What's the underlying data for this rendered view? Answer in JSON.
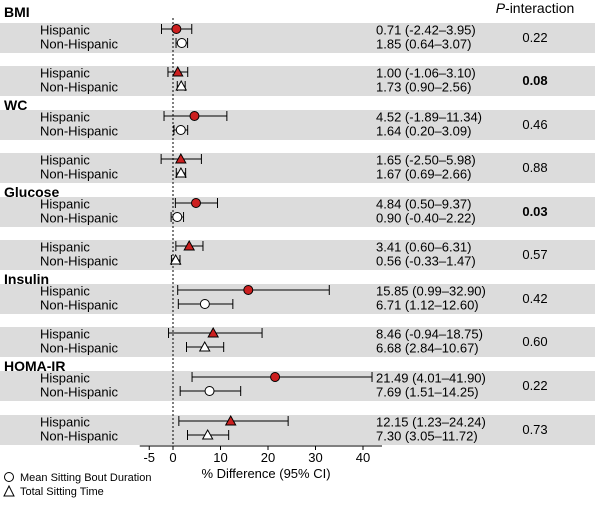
{
  "chart_data": {
    "type": "forest",
    "pinteraction_header_prefix": "P",
    "pinteraction_header_suffix": "-interaction",
    "xlabel": "% Difference (95% CI)",
    "xticks": [
      -5,
      0,
      10,
      20,
      30,
      40
    ],
    "xlim": [
      -7,
      44
    ],
    "reference_line": 0,
    "legend": [
      {
        "marker": "circle",
        "label": "Mean Sitting Bout Duration"
      },
      {
        "marker": "triangle",
        "label": "Total Sitting Time"
      }
    ],
    "sections": [
      {
        "title": "BMI",
        "blocks": [
          {
            "marker": "circle",
            "p": "0.22",
            "bold": false,
            "rows": [
              {
                "group": "Hispanic",
                "est": 0.71,
                "lo": -2.42,
                "hi": 3.95,
                "text": "0.71 (-2.42–3.95)"
              },
              {
                "group": "Non-Hispanic",
                "est": 1.85,
                "lo": 0.64,
                "hi": 3.07,
                "text": "1.85 (0.64–3.07)"
              }
            ]
          },
          {
            "marker": "triangle",
            "p": "0.08",
            "bold": true,
            "rows": [
              {
                "group": "Hispanic",
                "est": 1.0,
                "lo": -1.06,
                "hi": 3.1,
                "text": "1.00 (-1.06–3.10)"
              },
              {
                "group": "Non-Hispanic",
                "est": 1.73,
                "lo": 0.9,
                "hi": 2.56,
                "text": "1.73 (0.90–2.56)"
              }
            ]
          }
        ]
      },
      {
        "title": "WC",
        "blocks": [
          {
            "marker": "circle",
            "p": "0.46",
            "bold": false,
            "rows": [
              {
                "group": "Hispanic",
                "est": 4.52,
                "lo": -1.89,
                "hi": 11.34,
                "text": "4.52 (-1.89–11.34)"
              },
              {
                "group": "Non-Hispanic",
                "est": 1.64,
                "lo": 0.2,
                "hi": 3.09,
                "text": "1.64 (0.20–3.09)"
              }
            ]
          },
          {
            "marker": "triangle",
            "p": "0.88",
            "bold": false,
            "rows": [
              {
                "group": "Hispanic",
                "est": 1.65,
                "lo": -2.5,
                "hi": 5.98,
                "text": "1.65 (-2.50–5.98)"
              },
              {
                "group": "Non-Hispanic",
                "est": 1.67,
                "lo": 0.69,
                "hi": 2.66,
                "text": "1.67 (0.69–2.66)"
              }
            ]
          }
        ]
      },
      {
        "title": "Glucose",
        "blocks": [
          {
            "marker": "circle",
            "p": "0.03",
            "bold": true,
            "rows": [
              {
                "group": "Hispanic",
                "est": 4.84,
                "lo": 0.5,
                "hi": 9.37,
                "text": "4.84 (0.50–9.37)"
              },
              {
                "group": "Non-Hispanic",
                "est": 0.9,
                "lo": -0.4,
                "hi": 2.22,
                "text": "0.90 (-0.40–2.22)"
              }
            ]
          },
          {
            "marker": "triangle",
            "p": "0.57",
            "bold": false,
            "rows": [
              {
                "group": "Hispanic",
                "est": 3.41,
                "lo": 0.6,
                "hi": 6.31,
                "text": "3.41 (0.60–6.31)"
              },
              {
                "group": "Non-Hispanic",
                "est": 0.56,
                "lo": -0.33,
                "hi": 1.47,
                "text": "0.56 (-0.33–1.47)"
              }
            ]
          }
        ]
      },
      {
        "title": "Insulin",
        "blocks": [
          {
            "marker": "circle",
            "p": "0.42",
            "bold": false,
            "rows": [
              {
                "group": "Hispanic",
                "est": 15.85,
                "lo": 0.99,
                "hi": 32.9,
                "text": "15.85 (0.99–32.90)"
              },
              {
                "group": "Non-Hispanic",
                "est": 6.71,
                "lo": 1.12,
                "hi": 12.6,
                "text": "6.71 (1.12–12.60)"
              }
            ]
          },
          {
            "marker": "triangle",
            "p": "0.60",
            "bold": false,
            "rows": [
              {
                "group": "Hispanic",
                "est": 8.46,
                "lo": -0.94,
                "hi": 18.75,
                "text": "8.46 (-0.94–18.75)"
              },
              {
                "group": "Non-Hispanic",
                "est": 6.68,
                "lo": 2.84,
                "hi": 10.67,
                "text": "6.68 (2.84–10.67)"
              }
            ]
          }
        ]
      },
      {
        "title": "HOMA-IR",
        "blocks": [
          {
            "marker": "circle",
            "p": "0.22",
            "bold": false,
            "rows": [
              {
                "group": "Hispanic",
                "est": 21.49,
                "lo": 4.01,
                "hi": 41.9,
                "text": "21.49 (4.01–41.90)"
              },
              {
                "group": "Non-Hispanic",
                "est": 7.69,
                "lo": 1.51,
                "hi": 14.25,
                "text": "7.69 (1.51–14.25)"
              }
            ]
          },
          {
            "marker": "triangle",
            "p": "0.73",
            "bold": false,
            "rows": [
              {
                "group": "Hispanic",
                "est": 12.15,
                "lo": 1.23,
                "hi": 24.24,
                "text": "12.15 (1.23–24.24)"
              },
              {
                "group": "Non-Hispanic",
                "est": 7.3,
                "lo": 3.05,
                "hi": 11.72,
                "text": "7.30 (3.05–11.72)"
              }
            ]
          }
        ]
      }
    ],
    "colors": {
      "hispanic_fill": "#cc1f1f",
      "nonhispanic_fill": "#ffffff",
      "row_band": "#dcdcdc",
      "line": "#000000"
    }
  }
}
